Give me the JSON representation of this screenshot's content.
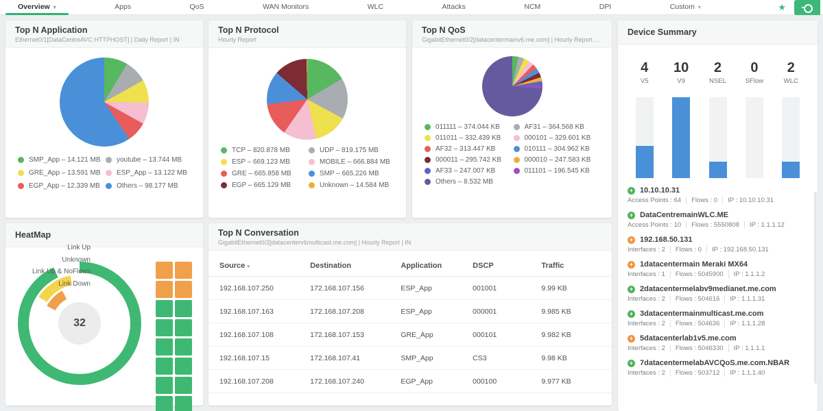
{
  "icons": {
    "star": "★",
    "chevron_down": "▾"
  },
  "nav": {
    "tabs": [
      {
        "label": "Overview",
        "active": true,
        "caret": true
      },
      {
        "label": "Apps"
      },
      {
        "label": "QoS"
      },
      {
        "label": "WAN Monitors"
      },
      {
        "label": "WLC"
      },
      {
        "label": "Attacks"
      },
      {
        "label": "NCM"
      },
      {
        "label": "DPI"
      },
      {
        "label": "Custom",
        "caret": true
      }
    ]
  },
  "chart_data": [
    {
      "type": "pie",
      "title": "Top N Application",
      "subtitle": "Ethernet0/1[DataCentreAVC HTTPHOST] | Daily Report | IN",
      "unit": "MB",
      "slices": [
        {
          "label": "SMP_App",
          "value": 14.121,
          "text": "14.121 MB",
          "color": "#57b860"
        },
        {
          "label": "youtube",
          "value": 13.744,
          "text": "13.744 MB",
          "color": "#a9adb2"
        },
        {
          "label": "GRE_App",
          "value": 13.591,
          "text": "13.591 MB",
          "color": "#efe04e"
        },
        {
          "label": "ESP_App",
          "value": 13.122,
          "text": "13.122 MB",
          "color": "#f5bfd0"
        },
        {
          "label": "EGP_App",
          "value": 12.339,
          "text": "12.339 MB",
          "color": "#e85c5c"
        },
        {
          "label": "Others",
          "value": 98.177,
          "text": "98.177 MB",
          "color": "#4a90d9"
        }
      ]
    },
    {
      "type": "pie",
      "title": "Top N Protocol",
      "subtitle": "Hourly Report",
      "unit": "MB",
      "slices": [
        {
          "label": "TCP",
          "value": 820.878,
          "text": "820.878 MB",
          "color": "#57b860"
        },
        {
          "label": "UDP",
          "value": 819.175,
          "text": "819.175 MB",
          "color": "#a9adb2"
        },
        {
          "label": "ESP",
          "value": 669.123,
          "text": "669.123 MB",
          "color": "#efe04e"
        },
        {
          "label": "MOBILE",
          "value": 666.884,
          "text": "666.884 MB",
          "color": "#f5bfd0"
        },
        {
          "label": "GRE",
          "value": 665.858,
          "text": "665.858 MB",
          "color": "#e85c5c"
        },
        {
          "label": "SMP",
          "value": 665.226,
          "text": "665.226 MB",
          "color": "#4a90d9"
        },
        {
          "label": "EGP",
          "value": 665.129,
          "text": "665.129 MB",
          "color": "#7d2b35"
        },
        {
          "label": "Unknown",
          "value": 14.584,
          "text": "14.584 MB",
          "color": "#efad3b"
        }
      ]
    },
    {
      "type": "pie",
      "title": "Top N QoS",
      "subtitle": "GigabitEthernet0/2[datacentermainv6.me.com] | Hourly Report ...",
      "unit": "KB",
      "slices": [
        {
          "label": "011111",
          "value": 374.044,
          "text": "374.044 KB",
          "color": "#57b860"
        },
        {
          "label": "AF31",
          "value": 364.568,
          "text": "364.568 KB",
          "color": "#a9adb2"
        },
        {
          "label": "011011",
          "value": 332.439,
          "text": "332.439 KB",
          "color": "#efe04e"
        },
        {
          "label": "000101",
          "value": 329.601,
          "text": "329.601 KB",
          "color": "#f5bfd0"
        },
        {
          "label": "AF32",
          "value": 313.447,
          "text": "313.447 KB",
          "color": "#e85c5c"
        },
        {
          "label": "010111",
          "value": 304.962,
          "text": "304.962 KB",
          "color": "#4a90d9"
        },
        {
          "label": "000011",
          "value": 295.742,
          "text": "295.742 KB",
          "color": "#7d2b35"
        },
        {
          "label": "000010",
          "value": 247.583,
          "text": "247.583 KB",
          "color": "#efad3b"
        },
        {
          "label": "AF33",
          "value": 247.007,
          "text": "247.007 KB",
          "color": "#5b63c7"
        },
        {
          "label": "011101",
          "value": 196.545,
          "text": "196.545 KB",
          "color": "#9c4ec4"
        },
        {
          "label": "Others",
          "value": 8532,
          "text": "8.532 MB",
          "color": "#665a9e"
        }
      ]
    },
    {
      "type": "bar",
      "title": "Device Summary",
      "categories": [
        "V5",
        "V9",
        "NSEL",
        "SFlow",
        "WLC"
      ],
      "values": [
        4,
        10,
        2,
        0,
        2
      ],
      "max": 10,
      "bar_color": "#4a90d9",
      "track_color": "#f1f2f3"
    },
    {
      "type": "gauge",
      "title": "HeatMap",
      "center_value": "32",
      "rings": [
        {
          "label": "Link Up",
          "sweep_deg": 335,
          "color": "#3fb873"
        },
        {
          "label": "Unknown",
          "sweep_deg": 46,
          "color": "#f3d54d"
        },
        {
          "label": "Link Up & NoFlows",
          "sweep_deg": 34,
          "color": "#f0a04a"
        },
        {
          "label": "Link Down",
          "sweep_deg": 0,
          "color": "#e85c5c"
        }
      ],
      "grid": {
        "cols": 2,
        "orange": "#f0a04a",
        "green": "#3fb873",
        "cells": [
          "o",
          "o",
          "o",
          "o",
          "g",
          "g",
          "g",
          "g",
          "g",
          "g",
          "g",
          "g",
          "g",
          "g",
          "g",
          "g"
        ]
      }
    },
    {
      "type": "table",
      "title": "Top N Conversation",
      "subtitle": "GigabitEthernet0/2[datacenterv6multicast.me.com] | Hourly Report | IN",
      "columns": [
        "Source",
        "Destination",
        "Application",
        "DSCP",
        "Traffic"
      ],
      "sorted_column": "Source",
      "rows": [
        [
          "192.168.107.250",
          "172.168.107.156",
          "ESP_App",
          "001001",
          "9.99 KB"
        ],
        [
          "192.168.107.163",
          "172.168.107.208",
          "ESP_App",
          "000001",
          "9.985 KB"
        ],
        [
          "192.168.107.108",
          "172.168.107.153",
          "GRE_App",
          "000101",
          "9.982 KB"
        ],
        [
          "192.168.107.15",
          "172.168.107.41",
          "SMP_App",
          "CS3",
          "9.98 KB"
        ],
        [
          "192.168.107.208",
          "172.168.107.240",
          "EGP_App",
          "000100",
          "9.977 KB"
        ]
      ]
    }
  ],
  "devices": [
    {
      "name": "10.10.10.31",
      "status": "green",
      "fields": [
        "Access Points : 64",
        "Flows : 0",
        "IP : 10.10.10.31"
      ]
    },
    {
      "name": "DataCentremainWLC.ME",
      "status": "green",
      "fields": [
        "Access Points : 10",
        "Flows : 5550808",
        "IP : 1.1.1.12"
      ]
    },
    {
      "name": "192.168.50.131",
      "status": "orange",
      "fields": [
        "Interfaces : 2",
        "Flows : 0",
        "IP : 192.168.50.131"
      ]
    },
    {
      "name": "1datacentermain Meraki MX64",
      "status": "orange",
      "fields": [
        "Interfaces : 1",
        "Flows : 5045900",
        "IP : 1.1.1.2"
      ]
    },
    {
      "name": "2datacentermelabv9medianet.me.com",
      "status": "green",
      "fields": [
        "Interfaces : 2",
        "Flows : 504616",
        "IP : 1.1.1.31"
      ]
    },
    {
      "name": "3datacentermainmulticast.me.com",
      "status": "green",
      "fields": [
        "Interfaces : 2",
        "Flows : 504636",
        "IP : 1.1.1.28"
      ]
    },
    {
      "name": "5datacenterlab1v5.me.com",
      "status": "orange",
      "fields": [
        "Interfaces : 2",
        "Flows : 5046330",
        "IP : 1.1.1.1"
      ]
    },
    {
      "name": "7datacentermelabAVCQoS.me.com.NBAR",
      "status": "green",
      "fields": [
        "Interfaces : 2",
        "Flows : 503712",
        "IP : 1.1.1.40"
      ]
    }
  ]
}
